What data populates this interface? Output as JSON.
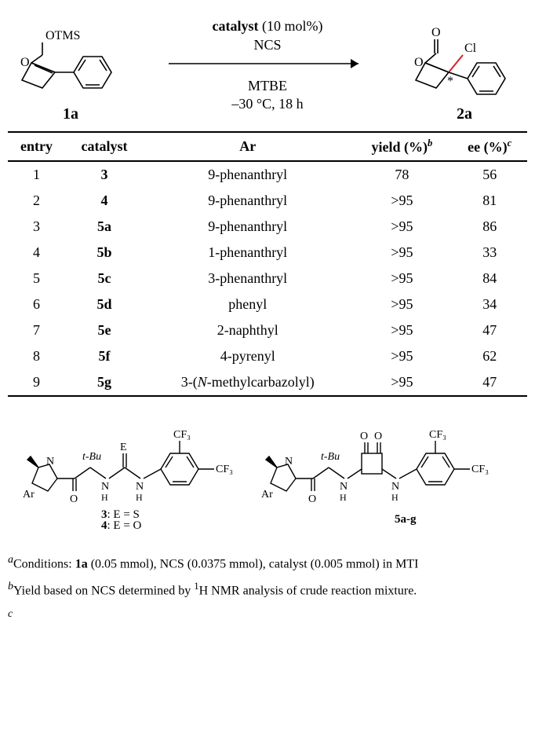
{
  "scheme": {
    "reagent_label": "1a",
    "product_label": "2a",
    "above_line1_prefix": "catalyst",
    "above_line1_suffix": " (10 mol%)",
    "above_line2": "NCS",
    "below_line1": "MTBE",
    "below_line2": "–30 °C, 18 h"
  },
  "table": {
    "headers": {
      "entry": "entry",
      "catalyst": "catalyst",
      "ar": "Ar",
      "yield_html": "yield (%)",
      "yield_sup": "b",
      "ee_html": "ee (%)",
      "ee_sup": "c"
    },
    "rows": [
      {
        "entry": "1",
        "catalyst": "3",
        "ar": "9-phenanthryl",
        "yield": "78",
        "ee": "56"
      },
      {
        "entry": "2",
        "catalyst": "4",
        "ar": "9-phenanthryl",
        "yield": ">95",
        "ee": "81"
      },
      {
        "entry": "3",
        "catalyst": "5a",
        "ar": "9-phenanthryl",
        "yield": ">95",
        "ee": "86"
      },
      {
        "entry": "4",
        "catalyst": "5b",
        "ar": "1-phenanthryl",
        "yield": ">95",
        "ee": "33"
      },
      {
        "entry": "5",
        "catalyst": "5c",
        "ar": "3-phenanthryl",
        "yield": ">95",
        "ee": "84"
      },
      {
        "entry": "6",
        "catalyst": "5d",
        "ar": "phenyl",
        "yield": ">95",
        "ee": "34"
      },
      {
        "entry": "7",
        "catalyst": "5e",
        "ar": "2-naphthyl",
        "yield": ">95",
        "ee": "47"
      },
      {
        "entry": "8",
        "catalyst": "5f",
        "ar": "4-pyrenyl",
        "yield": ">95",
        "ee": "62"
      },
      {
        "entry": "9",
        "catalyst": "5g",
        "ar_prefix": "3-(",
        "ar_ital": "N",
        "ar_suffix": "-methylcarbazolyl)",
        "yield": ">95",
        "ee": "47"
      }
    ]
  },
  "catalyst_structs": {
    "left_label_line1": "3: E = S",
    "left_label_line2": "4: E = O",
    "right_label": "5a-g"
  },
  "footnotes": {
    "a_sup": "a",
    "a_text": "Conditions: ",
    "a_bold": "1a",
    "a_rest": " (0.05 mmol), NCS (0.0375 mmol), catalyst (0.005 mmol) in MTI",
    "b_sup": "b",
    "b_text_pre": "Yield based on NCS determined by ",
    "b_nmr_sup": "1",
    "b_nmr": "H NMR",
    "b_text_post": " analysis of crude reaction mixture.",
    "c_sup": "c"
  },
  "colors": {
    "bond_red": "#d2232a",
    "text": "#000000"
  }
}
